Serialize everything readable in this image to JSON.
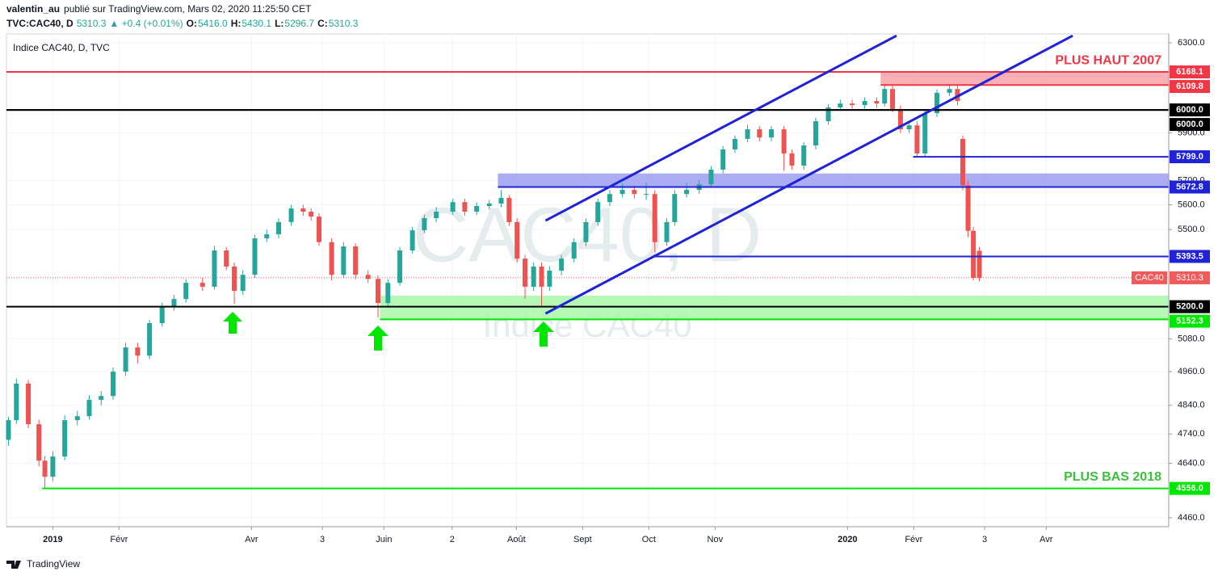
{
  "chart_data": {
    "type": "candlestick",
    "header": {
      "author": "valentin_au",
      "published": "publié sur TradingView.com, Mars 02, 2020 11:25:50 CET",
      "symbol": "TVC:CAC40, D",
      "price": "5310.3",
      "change": "▲ +0.4 (+0.01%)",
      "ohlc": [
        {
          "key": "O:",
          "value": "5416.0"
        },
        {
          "key": "H:",
          "value": "5430.1"
        },
        {
          "key": "L:",
          "value": "5296.7"
        },
        {
          "key": "C:",
          "value": "5310.3"
        }
      ]
    },
    "legend": "Indice CAC40, D, TVC",
    "watermark": [
      "CAC40, D",
      "Indice CAC40"
    ],
    "footer": "TradingView",
    "log_y": true,
    "grid": true,
    "up_color": "#26a69a",
    "down_color": "#ef5350",
    "xlim": [
      -0.7,
      16.85
    ],
    "xticks": [
      {
        "value": 0,
        "label": "2019"
      },
      {
        "value": 1,
        "label": "Févr"
      },
      {
        "value": 3,
        "label": "Avr"
      },
      {
        "value": 4.07,
        "label": "3"
      },
      {
        "value": 5,
        "label": "Juin"
      },
      {
        "value": 6.03,
        "label": "2"
      },
      {
        "value": 7,
        "label": "Août"
      },
      {
        "value": 8,
        "label": "Sept"
      },
      {
        "value": 9,
        "label": "Oct"
      },
      {
        "value": 10,
        "label": "Nov"
      },
      {
        "value": 12,
        "label": "2020"
      },
      {
        "value": 13,
        "label": "Févr"
      },
      {
        "value": 14.07,
        "label": "3"
      },
      {
        "value": 15,
        "label": "Avr"
      }
    ],
    "ylim": [
      4431,
      6341
    ],
    "yticks": [
      {
        "value": 6300,
        "label": "6300.0"
      },
      {
        "value": 5900,
        "label": "5900.0"
      },
      {
        "value": 5700,
        "label": "5700.0"
      },
      {
        "value": 5600,
        "label": "5600.0"
      },
      {
        "value": 5500,
        "label": "5500.0"
      },
      {
        "value": 5080,
        "label": "5080.0"
      },
      {
        "value": 4960,
        "label": "4960.0"
      },
      {
        "value": 4840,
        "label": "4840.0"
      },
      {
        "value": 4740,
        "label": "4740.0"
      },
      {
        "value": 4640,
        "label": "4640.0"
      },
      {
        "value": 4460,
        "label": "4460.0"
      }
    ],
    "x": [
      -0.67,
      -0.55,
      -0.37,
      -0.21,
      -0.12,
      0,
      0.18,
      0.37,
      0.55,
      0.73,
      0.91,
      1.1,
      1.28,
      1.46,
      1.65,
      1.83,
      2.01,
      2.26,
      2.44,
      2.62,
      2.74,
      2.87,
      3.05,
      3.23,
      3.41,
      3.6,
      3.78,
      3.9,
      4.02,
      4.21,
      4.39,
      4.57,
      4.76,
      4.91,
      5.06,
      5.24,
      5.43,
      5.61,
      5.79,
      6.04,
      6.22,
      6.4,
      6.59,
      6.77,
      6.89,
      7.01,
      7.13,
      7.26,
      7.38,
      7.5,
      7.68,
      7.87,
      8.05,
      8.23,
      8.41,
      8.6,
      8.78,
      8.96,
      9.09,
      9.27,
      9.39,
      9.57,
      9.76,
      9.94,
      10.12,
      10.3,
      10.49,
      10.67,
      10.85,
      11.04,
      11.16,
      11.34,
      11.52,
      11.71,
      11.89,
      12.07,
      12.26,
      12.44,
      12.56,
      12.68,
      12.8,
      12.93,
      13.05,
      13.17,
      13.35,
      13.54,
      13.66,
      13.74,
      13.82,
      13.9,
      13.99
    ],
    "open": [
      4720,
      4788,
      4917,
      4774,
      4649,
      4595,
      4663,
      4788,
      4802,
      4859,
      4873,
      4960,
      5048,
      5018,
      5138,
      5199,
      5229,
      5291,
      5276,
      5417,
      5354,
      5260,
      5322,
      5465,
      5481,
      5530,
      5585,
      5572,
      5552,
      5450,
      5322,
      5433,
      5322,
      5306,
      5214,
      5291,
      5417,
      5497,
      5546,
      5572,
      5611,
      5572,
      5595,
      5605,
      5628,
      5530,
      5385,
      5276,
      5354,
      5276,
      5338,
      5385,
      5450,
      5530,
      5611,
      5644,
      5661,
      5644,
      5644,
      5450,
      5530,
      5644,
      5661,
      5684,
      5745,
      5830,
      5875,
      5916,
      5881,
      5916,
      5813,
      5762,
      5847,
      5951,
      6011,
      6028,
      6021,
      6039,
      6028,
      6092,
      6004,
      5916,
      5933,
      5813,
      5986,
      6075,
      6092,
      5875,
      5680,
      5495,
      5416
    ],
    "high": [
      4800,
      4935,
      4930,
      4790,
      4665,
      4680,
      4805,
      4820,
      4875,
      4890,
      4975,
      5065,
      5065,
      5150,
      5215,
      5245,
      5305,
      5310,
      5435,
      5430,
      5370,
      5340,
      5480,
      5500,
      5545,
      5600,
      5600,
      5585,
      5565,
      5465,
      5450,
      5445,
      5340,
      5320,
      5305,
      5430,
      5510,
      5560,
      5590,
      5625,
      5625,
      5610,
      5620,
      5660,
      5640,
      5545,
      5400,
      5370,
      5370,
      5355,
      5400,
      5465,
      5545,
      5625,
      5660,
      5690,
      5680,
      5690,
      5660,
      5545,
      5660,
      5690,
      5700,
      5760,
      5845,
      5890,
      5935,
      5930,
      5930,
      5930,
      5830,
      5860,
      5965,
      6025,
      6045,
      6045,
      6055,
      6055,
      6110,
      6105,
      6020,
      5950,
      5950,
      6000,
      6090,
      6110,
      6111,
      5890,
      5700,
      5510,
      5430.1
    ],
    "low": [
      4700,
      4775,
      4760,
      4630,
      4556,
      4580,
      4650,
      4770,
      4790,
      4840,
      4860,
      4945,
      4990,
      5005,
      5125,
      5185,
      5215,
      5260,
      5265,
      5340,
      5210,
      5245,
      5310,
      5450,
      5465,
      5515,
      5555,
      5535,
      5435,
      5300,
      5310,
      5305,
      5290,
      5160,
      5200,
      5280,
      5405,
      5485,
      5530,
      5560,
      5555,
      5560,
      5580,
      5590,
      5515,
      5370,
      5230,
      5260,
      5200,
      5260,
      5320,
      5370,
      5435,
      5515,
      5595,
      5630,
      5625,
      5620,
      5410,
      5435,
      5515,
      5630,
      5645,
      5670,
      5730,
      5815,
      5860,
      5865,
      5865,
      5740,
      5745,
      5745,
      5830,
      5935,
      5995,
      6005,
      6005,
      6010,
      6015,
      5990,
      5900,
      5900,
      5800,
      5799,
      5970,
      6060,
      6020,
      5660,
      5470,
      5300,
      5296.7
    ],
    "close": [
      4788,
      4917,
      4774,
      4649,
      4595,
      4663,
      4788,
      4802,
      4859,
      4873,
      4960,
      5048,
      5018,
      5138,
      5199,
      5229,
      5291,
      5276,
      5417,
      5354,
      5260,
      5322,
      5465,
      5481,
      5530,
      5585,
      5572,
      5552,
      5450,
      5322,
      5433,
      5322,
      5306,
      5214,
      5291,
      5417,
      5497,
      5546,
      5572,
      5611,
      5572,
      5595,
      5605,
      5628,
      5530,
      5385,
      5276,
      5354,
      5276,
      5338,
      5385,
      5450,
      5530,
      5611,
      5644,
      5661,
      5644,
      5644,
      5450,
      5530,
      5644,
      5661,
      5684,
      5745,
      5830,
      5875,
      5916,
      5881,
      5916,
      5813,
      5762,
      5847,
      5951,
      6011,
      6028,
      6021,
      6039,
      6028,
      6092,
      6004,
      5916,
      5933,
      5813,
      5986,
      6075,
      6092,
      6039,
      5680,
      5495,
      5309.9,
      5310.3
    ],
    "zones": [
      {
        "from": 6109.8,
        "to": 6168.1,
        "start": 12.5,
        "color": "#f7a1a8"
      },
      {
        "from": 5672.8,
        "to": 5729,
        "start": 6.72,
        "color": "#9c9ff0"
      },
      {
        "from": 5152.3,
        "to": 5242,
        "start": 4.94,
        "color": "#a9f7a9"
      }
    ],
    "levels": [
      {
        "value": 6168.1,
        "label": "6168.1",
        "color": "#f23645"
      },
      {
        "value": 6109.8,
        "label": "6109.8",
        "color": "#f23645",
        "start": 12.5
      },
      {
        "value": 6000,
        "label": "6000.0",
        "color": "#000000"
      },
      {
        "value": 6000,
        "label": "6000.0",
        "color": "#000000"
      },
      {
        "value": 5799,
        "label": "5799.0",
        "color": "#1f22d6",
        "start": 12.99
      },
      {
        "value": 5672.8,
        "label": "5672.8",
        "color": "#1f22d6",
        "start": 6.72
      },
      {
        "value": 5393.5,
        "label": "5393.5",
        "color": "#1f22d6",
        "start": 9.06
      },
      {
        "value": 5200,
        "label": "5200.0",
        "color": "#000000"
      },
      {
        "value": 5152.3,
        "label": "5152.3",
        "color": "#00e600",
        "start": 4.94
      },
      {
        "value": 4556,
        "label": "4556.0",
        "color": "#00e600",
        "start": -0.16
      }
    ],
    "trendlines": [
      {
        "x": [
          7.44,
          12.74
        ],
        "y": [
          5536,
          6333
        ],
        "color": "#1f22d6"
      },
      {
        "x": [
          7.44,
          15.4
        ],
        "y": [
          5174,
          6333
        ],
        "color": "#1f22d6"
      }
    ],
    "annotations": [
      {
        "text": "PLUS HAUT 2007",
        "color": "#f23645"
      },
      {
        "text": "PLUS BAS 2018",
        "color": "#3cbf3c"
      }
    ],
    "last": {
      "name": "CAC40",
      "value": 5310.3,
      "label": "5310.3",
      "color": "#f05a5a"
    }
  }
}
